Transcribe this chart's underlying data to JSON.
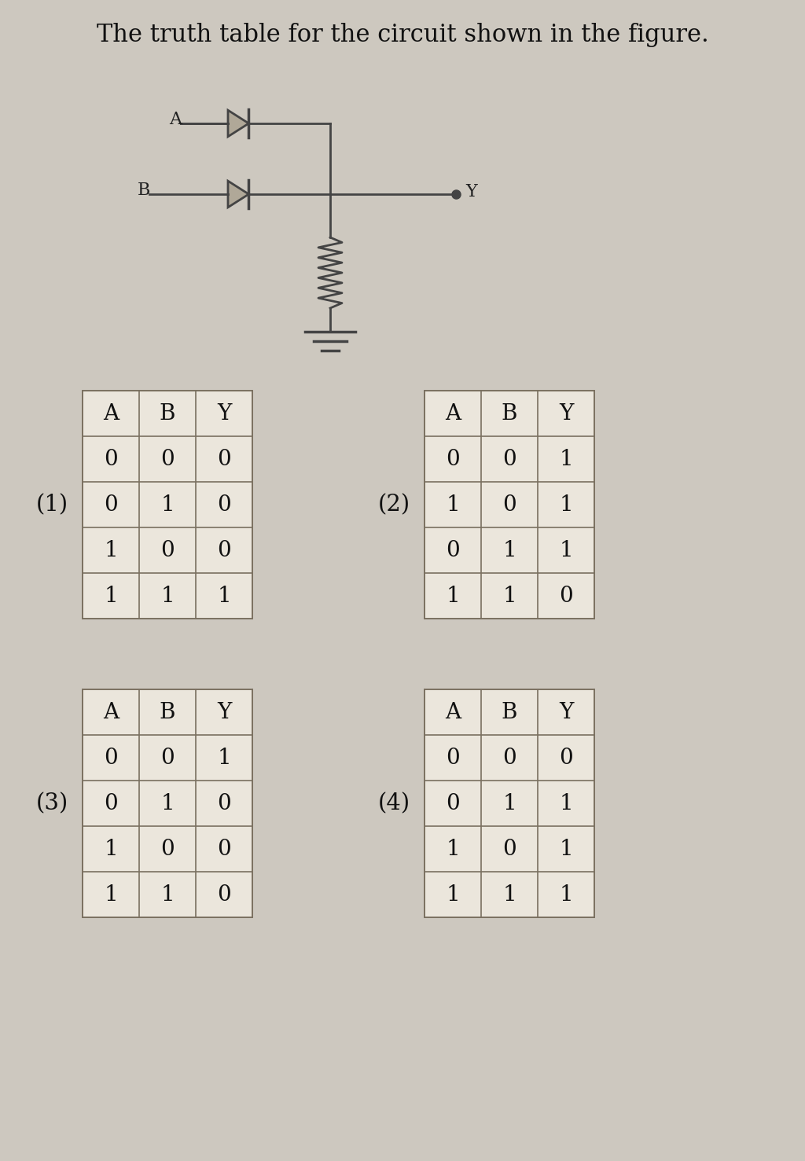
{
  "title": "The truth table for the circuit shown in the figure.",
  "bg_color": "#cdc8bf",
  "table_bg": "#ebe6dc",
  "table_line_color": "#7a7060",
  "tables": [
    {
      "label": "(1)",
      "headers": [
        "A",
        "B",
        "Y"
      ],
      "rows": [
        [
          "0",
          "0",
          "0"
        ],
        [
          "0",
          "1",
          "0"
        ],
        [
          "1",
          "0",
          "0"
        ],
        [
          "1",
          "1",
          "1"
        ]
      ]
    },
    {
      "label": "(2)",
      "headers": [
        "A",
        "B",
        "Y"
      ],
      "rows": [
        [
          "0",
          "0",
          "1"
        ],
        [
          "1",
          "0",
          "1"
        ],
        [
          "0",
          "1",
          "1"
        ],
        [
          "1",
          "1",
          "0"
        ]
      ]
    },
    {
      "label": "(3)",
      "headers": [
        "A",
        "B",
        "Y"
      ],
      "rows": [
        [
          "0",
          "0",
          "1"
        ],
        [
          "0",
          "1",
          "0"
        ],
        [
          "1",
          "0",
          "0"
        ],
        [
          "1",
          "1",
          "0"
        ]
      ]
    },
    {
      "label": "(4)",
      "headers": [
        "A",
        "B",
        "Y"
      ],
      "rows": [
        [
          "0",
          "0",
          "0"
        ],
        [
          "0",
          "1",
          "1"
        ],
        [
          "1",
          "0",
          "1"
        ],
        [
          "1",
          "1",
          "1"
        ]
      ]
    }
  ],
  "circuit": {
    "A_label": "A",
    "B_label": "B",
    "Y_label": "Y",
    "line_color": "#444444",
    "line_width": 2.0
  },
  "title_fontsize": 22,
  "header_fontsize": 20,
  "data_fontsize": 20,
  "label_fontsize": 21
}
